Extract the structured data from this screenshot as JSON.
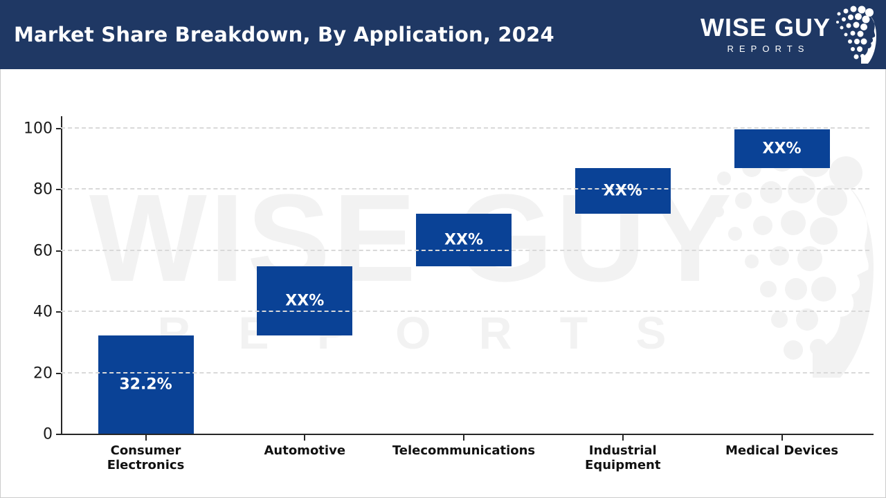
{
  "header": {
    "title": "Market Share Breakdown, By Application, 2024",
    "background_color": "#1f3864",
    "logo": {
      "line1": "WISE GUY",
      "line2": "REPORTS",
      "head_icon": "dotted-face-profile"
    }
  },
  "watermark": {
    "line1": "WISE GUY",
    "line2": "REPORTS"
  },
  "chart_data": {
    "type": "bar",
    "subtype": "waterfall",
    "title": "Market Share Breakdown, By Application, 2024",
    "categories": [
      "Consumer Electronics",
      "Automotive",
      "Telecommunications",
      "Industrial Equipment",
      "Medical Devices"
    ],
    "category_label_lines": [
      [
        "Consumer",
        "Electronics"
      ],
      [
        "Automotive"
      ],
      [
        "Telecommunications"
      ],
      [
        "Industrial",
        "Equipment"
      ],
      [
        "Medical Devices"
      ]
    ],
    "segments": [
      {
        "category": "Consumer Electronics",
        "start": 0,
        "end": 32.2,
        "label": "32.2%"
      },
      {
        "category": "Automotive",
        "start": 32.2,
        "end": 54.8,
        "label": "XX%"
      },
      {
        "category": "Telecommunications",
        "start": 54.8,
        "end": 71.9,
        "label": "XX%"
      },
      {
        "category": "Industrial Equipment",
        "start": 71.9,
        "end": 86.9,
        "label": "XX%"
      },
      {
        "category": "Medical Devices",
        "start": 86.9,
        "end": 99.5,
        "label": "XX%"
      }
    ],
    "yticks": [
      0,
      20,
      40,
      60,
      80,
      100
    ],
    "ylim": [
      0,
      105
    ],
    "xlabel": "",
    "ylabel": "",
    "legend": "none",
    "grid": "horizontal-dashed",
    "bar_color": "#0a4296",
    "bar_label_color": "#ffffff",
    "axis_color": "#262626",
    "grid_color": "#d9d9d9"
  }
}
